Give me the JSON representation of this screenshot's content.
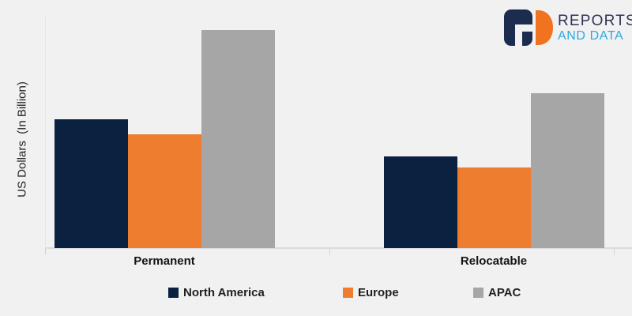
{
  "logo": {
    "line1": "REPORTS",
    "line2": "AND DATA",
    "line1_color": "#2e3453",
    "line2_color": "#29a9e1",
    "monogram_r_color": "#1b2c4f",
    "monogram_d_color": "#f1731f"
  },
  "chart_data": {
    "type": "bar",
    "title": "",
    "xlabel": "",
    "ylabel": "US Dollars  (In Billion)",
    "categories": [
      "Permanent",
      "Relocatable"
    ],
    "series": [
      {
        "name": "North America",
        "color": "#0a2240",
        "values": [
          5.9,
          4.2
        ]
      },
      {
        "name": "Europe",
        "color": "#ee7d2f",
        "values": [
          5.2,
          3.7
        ]
      },
      {
        "name": "APAC",
        "color": "#a6a6a6",
        "values": [
          10.0,
          7.1
        ]
      }
    ],
    "ylim": [
      0,
      11
    ],
    "y_tick_labels_visible": false,
    "gridlines": false,
    "legend_position": "bottom",
    "value_note": "values estimated in relative units; chart shows no numeric axis labels"
  }
}
